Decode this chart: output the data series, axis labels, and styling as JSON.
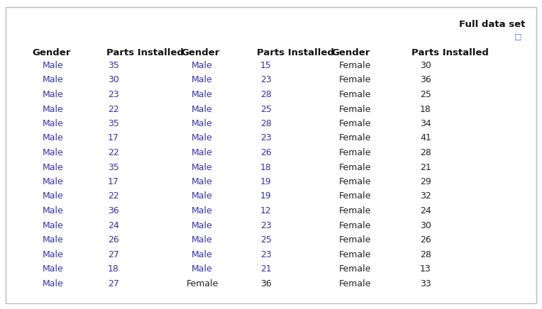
{
  "title": "Full data set",
  "col1_gender": [
    "Male",
    "Male",
    "Male",
    "Male",
    "Male",
    "Male",
    "Male",
    "Male",
    "Male",
    "Male",
    "Male",
    "Male",
    "Male",
    "Male",
    "Male",
    "Male"
  ],
  "col1_parts": [
    35,
    30,
    23,
    22,
    35,
    17,
    22,
    35,
    17,
    22,
    36,
    24,
    26,
    27,
    18,
    27
  ],
  "col2_gender": [
    "Male",
    "Male",
    "Male",
    "Male",
    "Male",
    "Male",
    "Male",
    "Male",
    "Male",
    "Male",
    "Male",
    "Male",
    "Male",
    "Male",
    "Male",
    "Female"
  ],
  "col2_parts": [
    15,
    23,
    28,
    25,
    28,
    23,
    26,
    18,
    19,
    19,
    12,
    23,
    25,
    23,
    21,
    36
  ],
  "col3_gender": [
    "Female",
    "Female",
    "Female",
    "Female",
    "Female",
    "Female",
    "Female",
    "Female",
    "Female",
    "Female",
    "Female",
    "Female",
    "Female",
    "Female",
    "Female",
    "Female"
  ],
  "col3_parts": [
    30,
    36,
    25,
    18,
    34,
    41,
    28,
    21,
    29,
    32,
    24,
    30,
    26,
    28,
    13,
    33
  ],
  "male_color": "#3333aa",
  "female_color": "#222222",
  "header_color": "#111111",
  "bg_color": "#ffffff",
  "border_color": "#bbbbbb",
  "title_color": "#111111",
  "icon_color": "#4466cc"
}
